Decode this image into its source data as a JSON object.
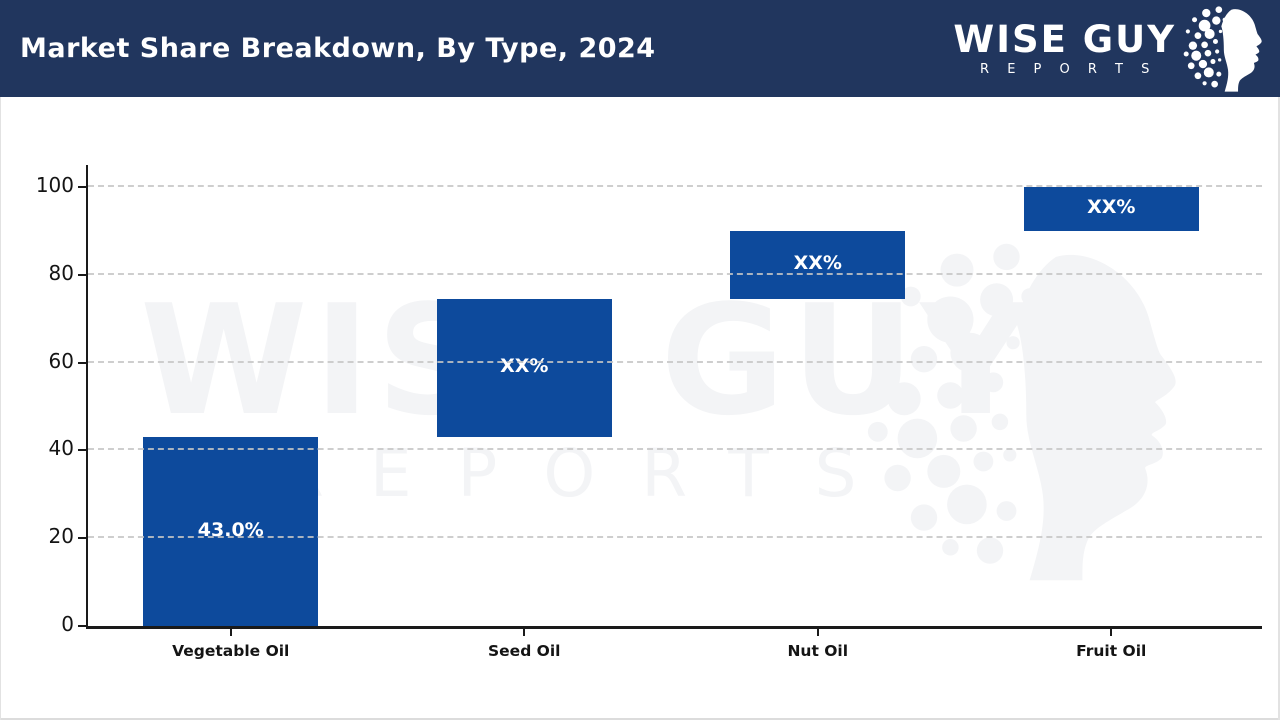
{
  "header": {
    "title": "Market Share Breakdown, By Type, 2024",
    "brand": {
      "line1": "WISE GUY",
      "line2": "R E P O R T S"
    }
  },
  "watermark": {
    "line1": "WISE GUY",
    "line2": "REPORTS"
  },
  "colors": {
    "header_bg": "#21365e",
    "bar": "#0d4a9c",
    "axis": "#1a1a1a",
    "gridline": "#c5c5c5",
    "bar_label_text": "#ffffff",
    "watermark": "#f3f4f6"
  },
  "chart_data": {
    "type": "bar",
    "subtype": "waterfall",
    "title": "Market Share Breakdown, By Type, 2024",
    "xlabel": "",
    "ylabel": "",
    "categories": [
      "Vegetable Oil",
      "Seed Oil",
      "Nut Oil",
      "Fruit Oil"
    ],
    "segments": [
      {
        "category": "Vegetable Oil",
        "start": 0,
        "end": 43,
        "label": "43.0%",
        "value": 43.0
      },
      {
        "category": "Seed Oil",
        "start": 43,
        "end": 74.5,
        "label": "XX%",
        "value_masked": true,
        "estimated_value": 31.5
      },
      {
        "category": "Nut Oil",
        "start": 74.5,
        "end": 90,
        "label": "XX%",
        "value_masked": true,
        "estimated_value": 15.5
      },
      {
        "category": "Fruit Oil",
        "start": 90,
        "end": 100,
        "label": "XX%",
        "value_masked": true,
        "estimated_value": 10
      }
    ],
    "yticks": [
      0,
      20,
      40,
      60,
      80,
      100
    ],
    "ylim": [
      0,
      105
    ],
    "grid": "horizontal dashed, drawn over bars",
    "legend": "none",
    "units": "percent"
  }
}
